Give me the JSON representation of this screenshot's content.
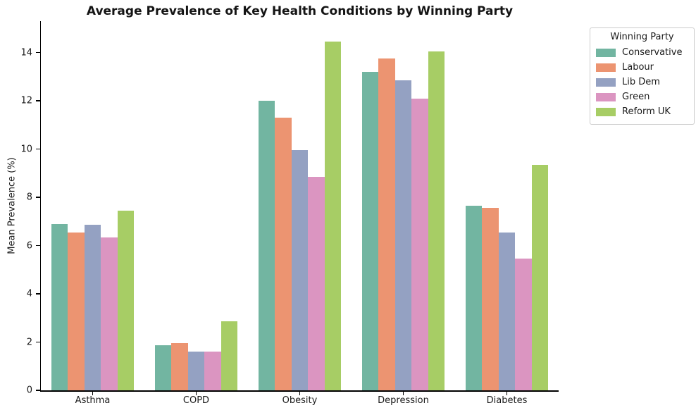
{
  "title": "Average Prevalence of Key Health Conditions by Winning Party",
  "ylabel": "Mean Prevalence (%)",
  "legend": {
    "title": "Winning Party"
  },
  "chart_data": {
    "type": "bar",
    "title": "Average Prevalence of Key Health Conditions by Winning Party",
    "xlabel": "",
    "ylabel": "Mean Prevalence (%)",
    "categories": [
      "Asthma",
      "COPD",
      "Obesity",
      "Depression",
      "Diabetes"
    ],
    "series": [
      {
        "name": "Conservative",
        "color": "#72b5a1",
        "values": [
          6.9,
          1.88,
          12.0,
          13.2,
          7.65
        ]
      },
      {
        "name": "Labour",
        "color": "#ec9471",
        "values": [
          6.55,
          1.97,
          11.3,
          13.75,
          7.55
        ]
      },
      {
        "name": "Lib Dem",
        "color": "#94a1c2",
        "values": [
          6.85,
          1.62,
          9.95,
          12.85,
          6.55
        ]
      },
      {
        "name": "Green",
        "color": "#db95c1",
        "values": [
          6.35,
          1.62,
          8.85,
          12.1,
          5.45
        ]
      },
      {
        "name": "Reform UK",
        "color": "#a7cd65",
        "values": [
          7.45,
          2.85,
          14.45,
          14.05,
          9.35
        ]
      }
    ],
    "ylim": [
      0,
      15.3
    ],
    "yticks": [
      0,
      2,
      4,
      6,
      8,
      10,
      12,
      14
    ],
    "legend_title": "Winning Party",
    "legend_position": "upper right",
    "grid": false
  }
}
